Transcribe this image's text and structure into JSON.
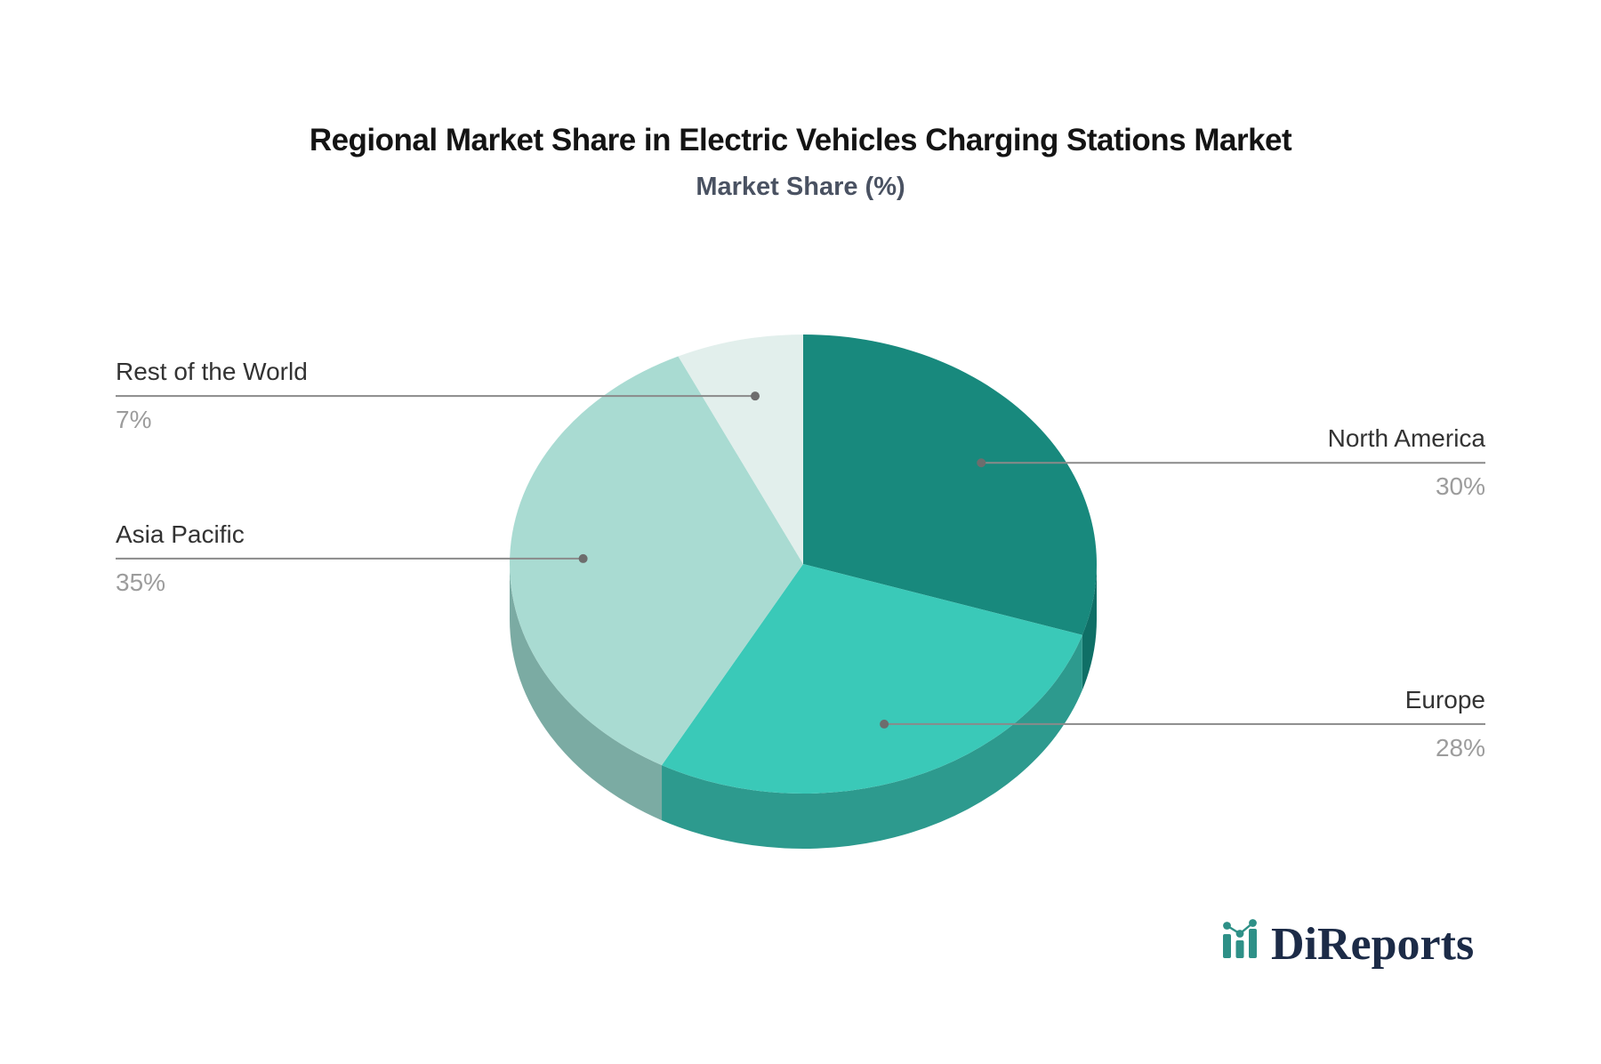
{
  "header": {
    "title": "Regional Market Share in Electric Vehicles Charging Stations Market",
    "subtitle": "Market Share (%)"
  },
  "chart_data": {
    "type": "pie",
    "style": "3d",
    "title": "Regional Market Share in Electric Vehicles Charging Stations Market",
    "subtitle": "Market Share (%)",
    "unit": "%",
    "start_angle": "12-oclock",
    "direction": "clockwise",
    "legend": "none",
    "categories": [
      "North America",
      "Europe",
      "Asia Pacific",
      "Rest of the World"
    ],
    "values": [
      30,
      28,
      35,
      7
    ],
    "pct_labels": [
      "30%",
      "28%",
      "35%",
      "7%"
    ],
    "colors": [
      "#18897d",
      "#3ac9b8",
      "#a9dbd2",
      "#e2efec"
    ],
    "side_colors": [
      "#0f6f66",
      "#2d9a8e",
      "#7baba3",
      "#c8dcd8"
    ],
    "callout_sides": [
      "right",
      "right",
      "left",
      "left"
    ]
  },
  "callout_style": {
    "line_color": "#8a8a8a",
    "dot_color": "#6d6d6d",
    "label_color": "#333333",
    "pct_color": "#9c9c9c"
  },
  "logo": {
    "text": "DiReports",
    "icon": "mini-bar-line-chart-icon",
    "icon_color": "#2e9087",
    "text_color": "#1c2b47"
  }
}
